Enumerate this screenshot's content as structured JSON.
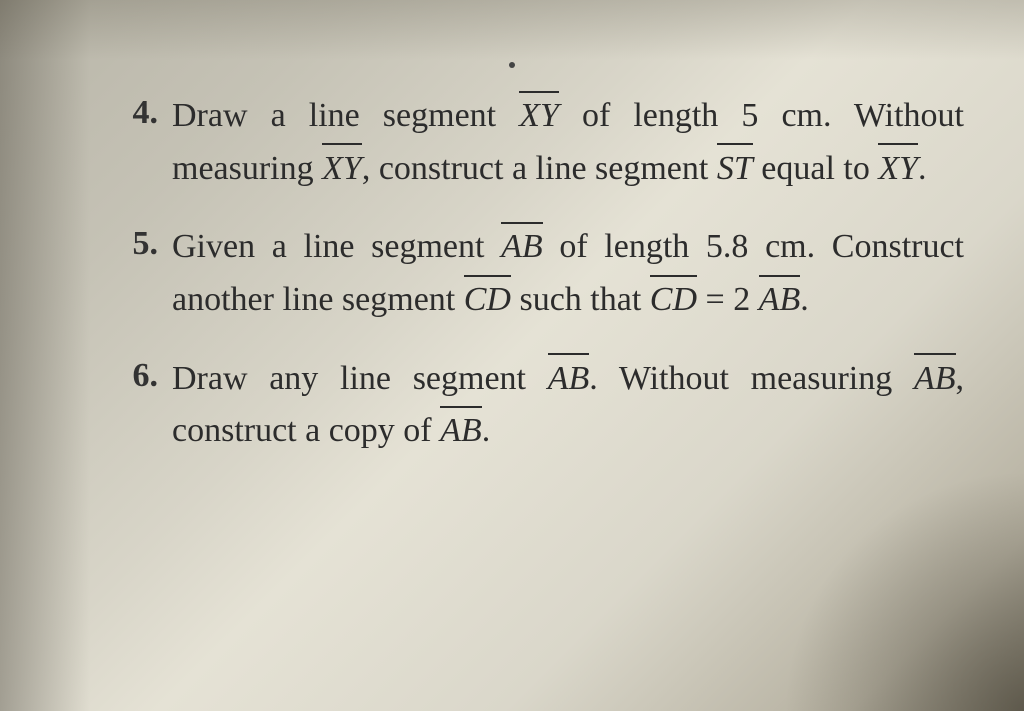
{
  "background": {
    "tone": "#d8d5c8",
    "text_color": "#2c2c2c"
  },
  "typography": {
    "family": "serif",
    "body_fontsize_pt": 26,
    "number_weight": "bold",
    "line_height": 1.55
  },
  "problems": [
    {
      "number": "4.",
      "parts": [
        {
          "t": "Draw a line segment "
        },
        {
          "seg": "XY"
        },
        {
          "t": " of length 5 cm. Without measuring "
        },
        {
          "seg": "XY"
        },
        {
          "t": ", construct a line segment "
        },
        {
          "seg": "ST"
        },
        {
          "t": " equal to "
        },
        {
          "seg": "XY"
        },
        {
          "t": "."
        }
      ]
    },
    {
      "number": "5.",
      "parts": [
        {
          "t": "Given a line segment "
        },
        {
          "seg": "AB"
        },
        {
          "t": " of length 5.8 cm. Construct another line segment "
        },
        {
          "seg": "CD"
        },
        {
          "t": " such that "
        },
        {
          "seg": "CD"
        },
        {
          "t": " = 2 "
        },
        {
          "seg": "AB"
        },
        {
          "t": "."
        }
      ]
    },
    {
      "number": "6.",
      "parts": [
        {
          "t": "Draw any line segment "
        },
        {
          "seg": "AB"
        },
        {
          "t": ". Without measuring "
        },
        {
          "seg": "AB"
        },
        {
          "t": ", construct a copy of "
        },
        {
          "seg": "AB"
        },
        {
          "t": "."
        }
      ]
    }
  ]
}
